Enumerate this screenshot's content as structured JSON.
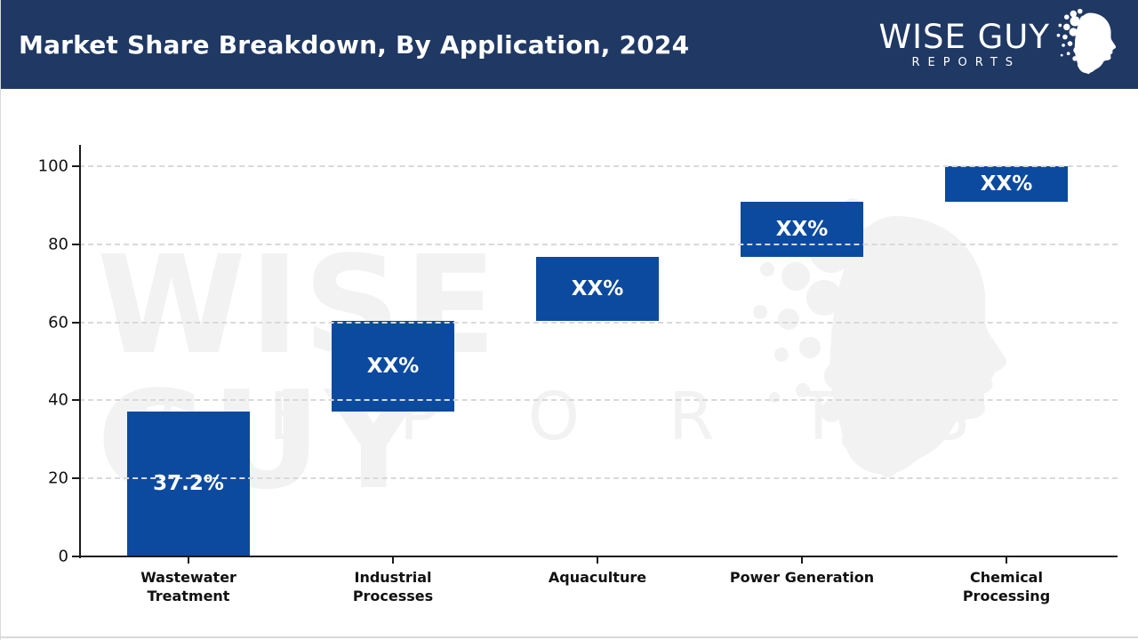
{
  "header": {
    "title": "Market Share Breakdown, By Application, 2024",
    "bg_color": "#1f3864",
    "logo": {
      "wordmark": "WISE GUY",
      "subtitle": "REPORTS"
    }
  },
  "watermark": {
    "line1": "WISE GUY",
    "line2": "REPORTS",
    "color": "#f2f2f2"
  },
  "chart_data": {
    "type": "bar",
    "subtype": "waterfall",
    "title": "Market Share Breakdown, By Application, 2024",
    "categories": [
      "Wastewater\nTreatment",
      "Industrial\nProcesses",
      "Aquaculture",
      "Power Generation",
      "Chemical\nProcessing"
    ],
    "series": [
      {
        "name": "Wastewater Treatment",
        "start": 0,
        "end": 37.2,
        "value": 37.2,
        "label": "37.2%"
      },
      {
        "name": "Industrial Processes",
        "start": 37.2,
        "end": 60.4,
        "value": 23.2,
        "label": "XX%"
      },
      {
        "name": "Aquaculture",
        "start": 60.4,
        "end": 76.8,
        "value": 16.4,
        "label": "XX%"
      },
      {
        "name": "Power Generation",
        "start": 76.8,
        "end": 90.9,
        "value": 14.1,
        "label": "XX%"
      },
      {
        "name": "Chemical Processing",
        "start": 90.9,
        "end": 100,
        "value": 9.1,
        "label": "XX%"
      }
    ],
    "xlabel": "",
    "ylabel": "",
    "yticks": [
      0,
      20,
      40,
      60,
      80,
      100
    ],
    "ylim": [
      0,
      105
    ],
    "bar_color": "#0b4a9f",
    "grid": "horizontal-dashed",
    "grid_color": "#d9d9d9",
    "grid_above_bars": true,
    "legend": "none"
  }
}
